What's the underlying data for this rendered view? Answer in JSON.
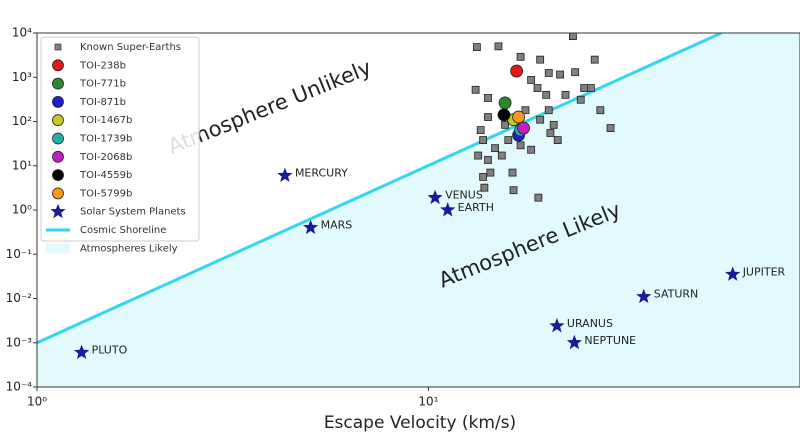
{
  "chart_data": {
    "type": "scatter",
    "xlabel": "Escape Velocity (km/s)",
    "xscale": "log",
    "yscale": "log",
    "xlim": [
      1,
      89
    ],
    "ylim": [
      0.0001,
      10000
    ],
    "xticks": [
      {
        "value": 1,
        "label": "10⁰"
      },
      {
        "value": 10,
        "label": "10¹"
      }
    ],
    "yticks": [
      {
        "value": 0.0001,
        "label": "10⁻⁴"
      },
      {
        "value": 0.001,
        "label": "10⁻³"
      },
      {
        "value": 0.01,
        "label": "10⁻²"
      },
      {
        "value": 0.1,
        "label": "10⁻¹"
      },
      {
        "value": 1,
        "label": "10⁰"
      },
      {
        "value": 10,
        "label": "10¹"
      },
      {
        "value": 100,
        "label": "10²"
      },
      {
        "value": 1000,
        "label": "10³"
      },
      {
        "value": 10000,
        "label": "10⁴"
      }
    ],
    "legend": "upper left",
    "annotations": [
      "Atmosphere Unlikely",
      "Atmosphere Likely"
    ],
    "series": [
      {
        "name": "Known Super-Earths",
        "color": "#808080",
        "marker": "square",
        "x": [
          13.3,
          15.1,
          17.2,
          19.3,
          23.4,
          20.3,
          21.7,
          23.7,
          26,
          26.6,
          13.2,
          14.2,
          14.2,
          13.8,
          14.8,
          14.2,
          13.8,
          13.9,
          14.4,
          15.4,
          16.4,
          16.5,
          19.3,
          20.3,
          21.4,
          20.9,
          20,
          19,
          18.3,
          22.4,
          24.5,
          25,
          29.2,
          27.5,
          18.3,
          19.1,
          20.5,
          13.6,
          17.7,
          16.0,
          17.2,
          15.7,
          13.4
        ],
        "y": [
          4800,
          5000,
          2900,
          2500,
          8500,
          1250,
          1150,
          1300,
          570,
          2500,
          520,
          340,
          126,
          38,
          25,
          13.5,
          5.6,
          3.2,
          7,
          17,
          7,
          2.8,
          110,
          180,
          38,
          84,
          400,
          570,
          870,
          400,
          310,
          570,
          71,
          180,
          23,
          1.9,
          55,
          64,
          180,
          38,
          29,
          84,
          17
        ]
      },
      {
        "name": "TOI-238b",
        "color": "#e31a1c",
        "marker": "circle",
        "x": [
          16.8
        ],
        "y": [
          1380
        ]
      },
      {
        "name": "TOI-771b",
        "color": "#2a8a2a",
        "marker": "circle",
        "x": [
          15.7
        ],
        "y": [
          263
        ]
      },
      {
        "name": "TOI-871b",
        "color": "#1f1fd0",
        "marker": "circle",
        "x": [
          17.0
        ],
        "y": [
          49
        ]
      },
      {
        "name": "TOI-1467b",
        "color": "#c8c81e",
        "marker": "circle",
        "x": [
          16.5
        ],
        "y": [
          110
        ]
      },
      {
        "name": "TOI-1739b",
        "color": "#20b2aa",
        "marker": "circle",
        "x": [
          17.2
        ],
        "y": [
          64
        ]
      },
      {
        "name": "TOI-2068b",
        "color": "#c020c0",
        "marker": "circle",
        "x": [
          17.5
        ],
        "y": [
          71
        ]
      },
      {
        "name": "TOI-4559b",
        "color": "#000000",
        "marker": "circle",
        "x": [
          15.6
        ],
        "y": [
          141
        ]
      },
      {
        "name": "TOI-5799b",
        "color": "#f59a1a",
        "marker": "circle",
        "x": [
          17.0
        ],
        "y": [
          126
        ]
      },
      {
        "name": "Solar System Planets",
        "color": "#1a1a9a",
        "marker": "star",
        "x": [
          4.3,
          5.0,
          10.4,
          11.2,
          1.3,
          21.3,
          23.6,
          35.5,
          59.9
        ],
        "y": [
          6,
          0.4,
          1.9,
          1.0,
          0.0006,
          0.0024,
          0.001,
          0.011,
          0.035
        ],
        "labels": [
          "MERCURY",
          "MARS",
          "VENUS",
          "EARTH",
          "PLUTO",
          "URANUS",
          "NEPTUNE",
          "SATURN",
          "JUPITER"
        ]
      },
      {
        "name": "Cosmic Shoreline",
        "color": "#33d6ee",
        "marker": "line",
        "x": [
          1,
          56
        ],
        "y": [
          0.001,
          10000
        ]
      },
      {
        "name": "Atmospheres Likely",
        "color": "#e2fafc",
        "marker": "region"
      }
    ]
  }
}
